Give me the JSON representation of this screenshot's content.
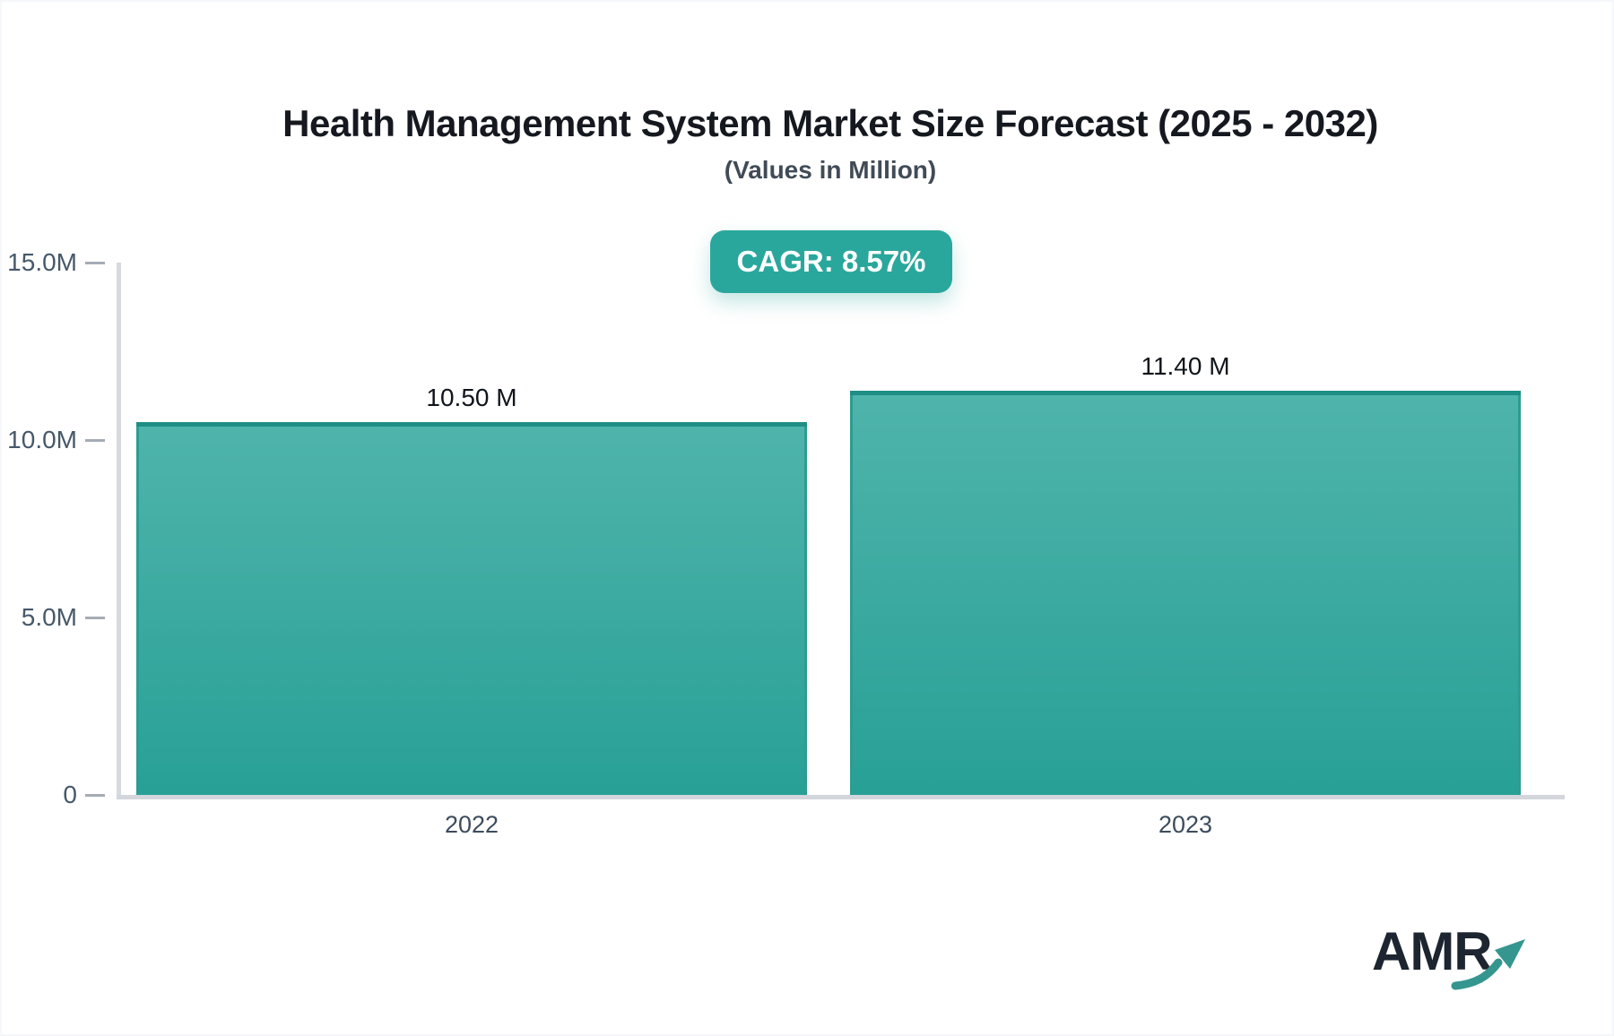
{
  "header": {
    "title": "Health Management System Market Size Forecast (2025 - 2032)",
    "subtitle": "(Values in Million)",
    "cagr_label": "CAGR: 8.57%"
  },
  "badge": {
    "background": "#2aa79c",
    "text_color": "#ffffff"
  },
  "chart_data": {
    "type": "bar",
    "title": "Health Management System Market Size Forecast (2025 - 2032)",
    "subtitle": "(Values in Million)",
    "cagr": "8.57%",
    "categories": [
      "2022",
      "2023"
    ],
    "values": [
      10.5,
      11.4
    ],
    "value_labels": [
      "10.50 M",
      "11.40 M"
    ],
    "xlabel": "",
    "ylabel": "",
    "ylim": [
      0,
      15
    ],
    "yticks": [
      {
        "label": "15.0M",
        "value": 15
      },
      {
        "label": "10.0M",
        "value": 10
      },
      {
        "label": "5.0M",
        "value": 5
      },
      {
        "label": "0",
        "value": 0
      }
    ],
    "grid": false,
    "legend": false,
    "bar_color_top": "#4fb4ab",
    "bar_color_bottom": "#28a096",
    "bar_edge_color": "#1f8e85",
    "axis_color": "#d6d9de",
    "tick_color": "#a6acb5",
    "tick_label_color": "#46586a"
  },
  "logo": {
    "text": "AMR",
    "text_color": "#1c2530",
    "arrow_color": "#35968f"
  }
}
